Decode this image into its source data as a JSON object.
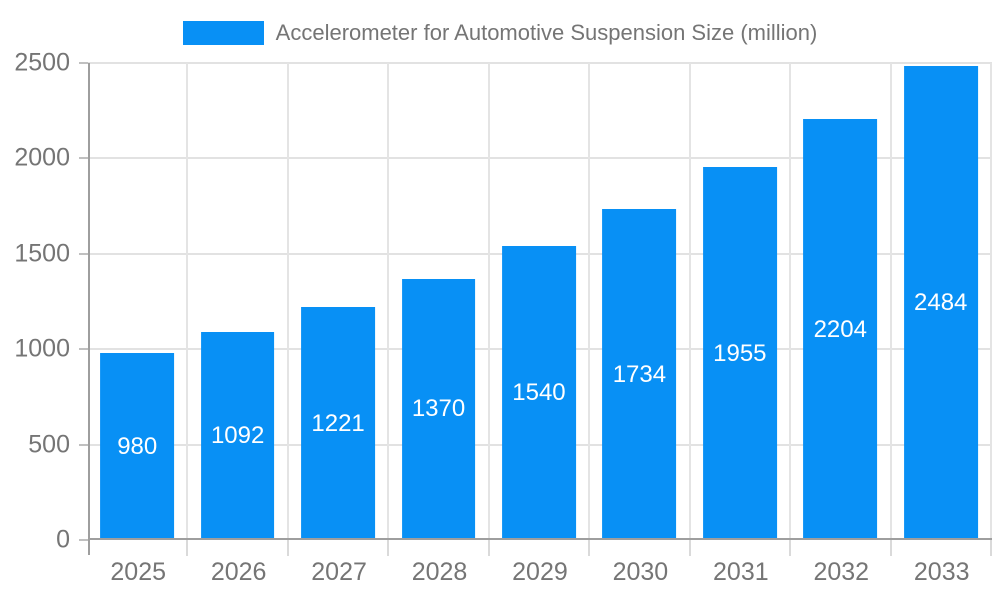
{
  "legend": {
    "label": "Accelerometer for Automotive Suspension Size (million)"
  },
  "chart_data": {
    "type": "bar",
    "title": "Accelerometer for Automotive Suspension Size (million)",
    "categories": [
      "2025",
      "2026",
      "2027",
      "2028",
      "2029",
      "2030",
      "2031",
      "2032",
      "2033"
    ],
    "values": [
      980,
      1092,
      1221,
      1370,
      1540,
      1734,
      1955,
      2204,
      2484
    ],
    "series_name": "Accelerometer for Automotive Suspension Size (million)",
    "xlabel": "",
    "ylabel": "",
    "ylim": [
      0,
      2500
    ],
    "yticks": [
      0,
      500,
      1000,
      1500,
      2000,
      2500
    ],
    "grid": true,
    "legend_position": "top-center",
    "colors": {
      "bar": "#0890f5",
      "value_label": "#ffffff",
      "axis": "#9e9e9e",
      "gridline": "#e2e2e2",
      "tick_label": "#757575"
    }
  }
}
